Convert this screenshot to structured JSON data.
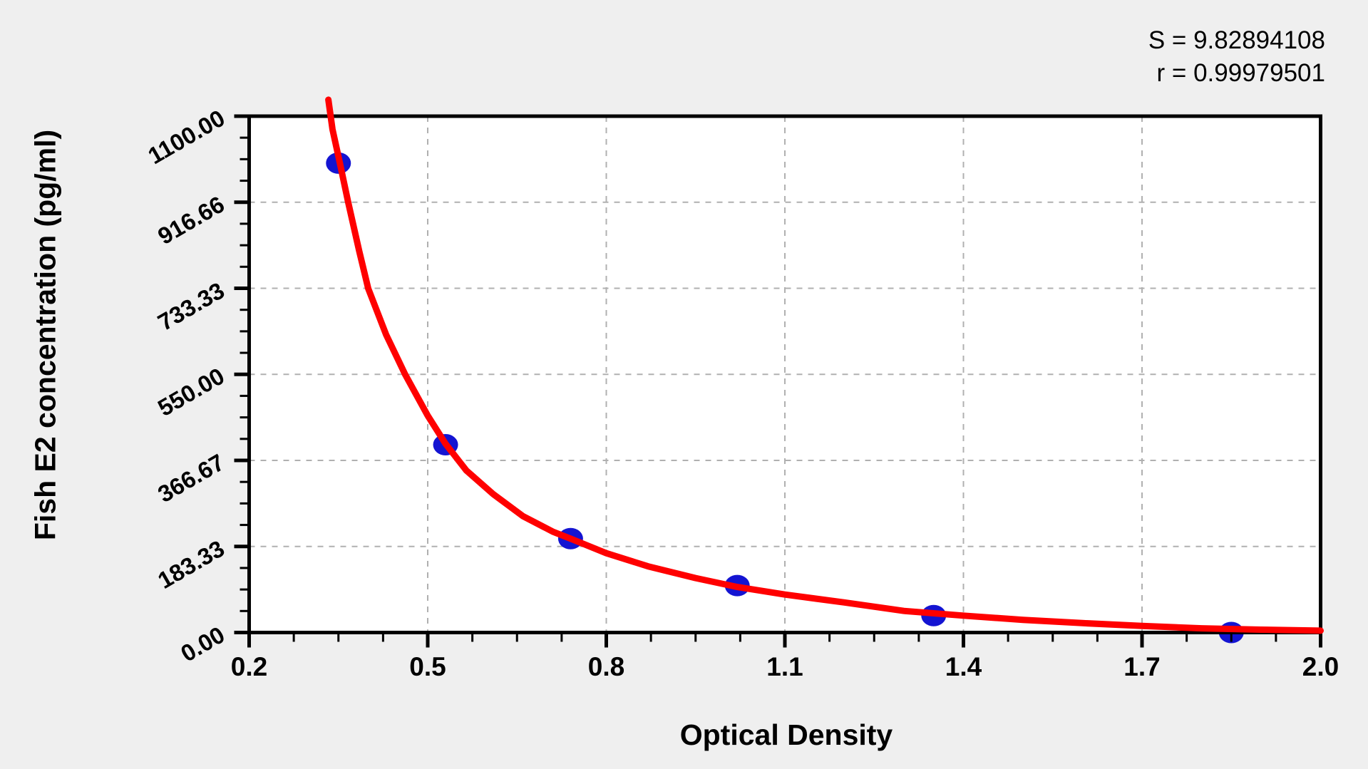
{
  "figure": {
    "background": "#efefef",
    "plot_background": "#ffffff",
    "axis_color": "#000000",
    "grid_color": "#b0b0b0"
  },
  "stats": {
    "s": "S = 9.82894108",
    "r": "r = 0.99979501"
  },
  "chart_data": {
    "type": "scatter",
    "title": "",
    "xlabel": "Optical Density",
    "ylabel": "Fish E2 concentration (pg/ml)",
    "xlim": [
      0.2,
      2.0
    ],
    "ylim": [
      0,
      1100
    ],
    "grid": "dashed-at-major-ticks",
    "legend": "none",
    "x_ticks": {
      "values": [
        0.2,
        0.5,
        0.8,
        1.1,
        1.4,
        1.7,
        2.0
      ],
      "labels": [
        "0.2",
        "0.5",
        "0.8",
        "1.1",
        "1.4",
        "1.7",
        "2.0"
      ],
      "minor_step": 0.075
    },
    "y_ticks": {
      "values": [
        0,
        183.33,
        366.67,
        550.0,
        733.33,
        916.66,
        1100.0
      ],
      "labels": [
        "0.00",
        "183.33",
        "366.67",
        "550.00",
        "733.33",
        "916.66",
        "1100.00"
      ],
      "minor_step": 45.8333
    },
    "annotations": [
      "S = 9.82894108",
      "r = 0.99979501"
    ],
    "series": [
      {
        "name": "standard-points",
        "kind": "scatter",
        "color": "#1414d2",
        "points": [
          [
            0.35,
            1000
          ],
          [
            0.53,
            400
          ],
          [
            0.74,
            200
          ],
          [
            1.02,
            100
          ],
          [
            1.35,
            36
          ],
          [
            1.85,
            0
          ]
        ]
      },
      {
        "name": "fitted-curve",
        "kind": "line",
        "color": "#ff0000",
        "points": [
          [
            0.333,
            1135
          ],
          [
            0.34,
            1072
          ],
          [
            0.3525,
            1000
          ],
          [
            0.3665,
            916
          ],
          [
            0.385,
            812
          ],
          [
            0.4,
            733
          ],
          [
            0.43,
            635
          ],
          [
            0.462,
            550
          ],
          [
            0.5,
            462
          ],
          [
            0.53,
            402
          ],
          [
            0.565,
            345
          ],
          [
            0.61,
            295
          ],
          [
            0.66,
            248
          ],
          [
            0.71,
            215
          ],
          [
            0.74,
            200
          ],
          [
            0.8,
            169
          ],
          [
            0.87,
            141
          ],
          [
            0.95,
            116
          ],
          [
            1.02,
            97
          ],
          [
            1.1,
            81
          ],
          [
            1.2,
            64
          ],
          [
            1.3,
            46
          ],
          [
            1.4,
            36
          ],
          [
            1.5,
            27
          ],
          [
            1.6,
            20
          ],
          [
            1.7,
            14
          ],
          [
            1.8,
            9
          ],
          [
            1.9,
            6
          ],
          [
            2.0,
            4
          ]
        ]
      }
    ]
  }
}
